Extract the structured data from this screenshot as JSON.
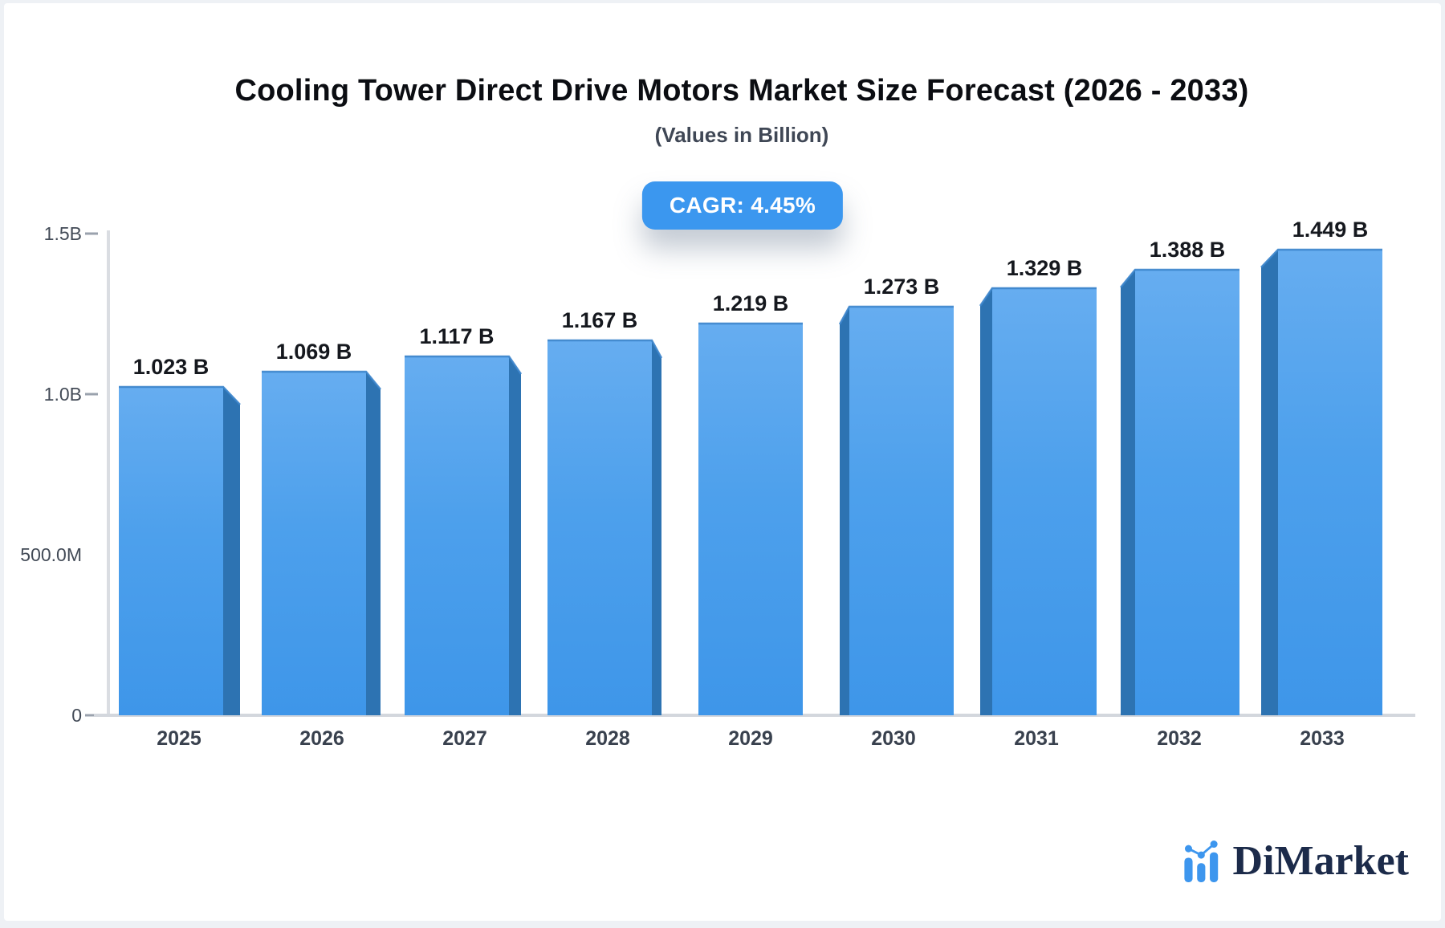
{
  "badge": {
    "label": "CAGR: 4.45%"
  },
  "logo": {
    "name": "DiMarket",
    "icon": "mini-bar-chart-icon"
  },
  "colors": {
    "badge_bg": "#3b97ef",
    "bar_gradient_top": "#66adf0",
    "bar_gradient_mid": "#4da0ec",
    "bar_gradient_bottom": "#3e96e9",
    "bar_side": "#2d73b2",
    "bar_top_edge": "#3b84cb",
    "axis_line": "#dadde2",
    "baseline": "#d3d7dd",
    "tick_dash": "#9aa2ad",
    "tick_text": "#434b57",
    "value_text": "#15181e",
    "year_text": "#39414e",
    "logo_blue": "#3d96ee",
    "logo_navy": "#1c2b4a"
  },
  "chart_data": {
    "type": "bar",
    "title": "Cooling Tower Direct Drive Motors Market Size Forecast (2026 - 2033)",
    "subtitle": "(Values in Billion)",
    "categories": [
      "2025",
      "2026",
      "2027",
      "2028",
      "2029",
      "2030",
      "2031",
      "2032",
      "2033"
    ],
    "values": [
      1.023,
      1.069,
      1.117,
      1.167,
      1.219,
      1.273,
      1.329,
      1.388,
      1.449
    ],
    "value_labels": [
      "1.023 B",
      "1.069 B",
      "1.117 B",
      "1.167 B",
      "1.219 B",
      "1.273 B",
      "1.329 B",
      "1.388 B",
      "1.449 B"
    ],
    "unit": "Billion",
    "cagr": "4.45%",
    "xlabel": "",
    "ylabel": "",
    "ylim": [
      0,
      1.5
    ],
    "yticks": [
      {
        "label": "1.5B",
        "value": 1.5,
        "dash": true
      },
      {
        "label": "1.0B",
        "value": 1.0,
        "dash": true
      },
      {
        "label": "500.0M",
        "value": 0.5,
        "dash": false
      },
      {
        "label": "0",
        "value": 0.0,
        "dash": true
      }
    ],
    "grid": false,
    "legend": false,
    "style": "3d-bars, perspective toward center"
  }
}
